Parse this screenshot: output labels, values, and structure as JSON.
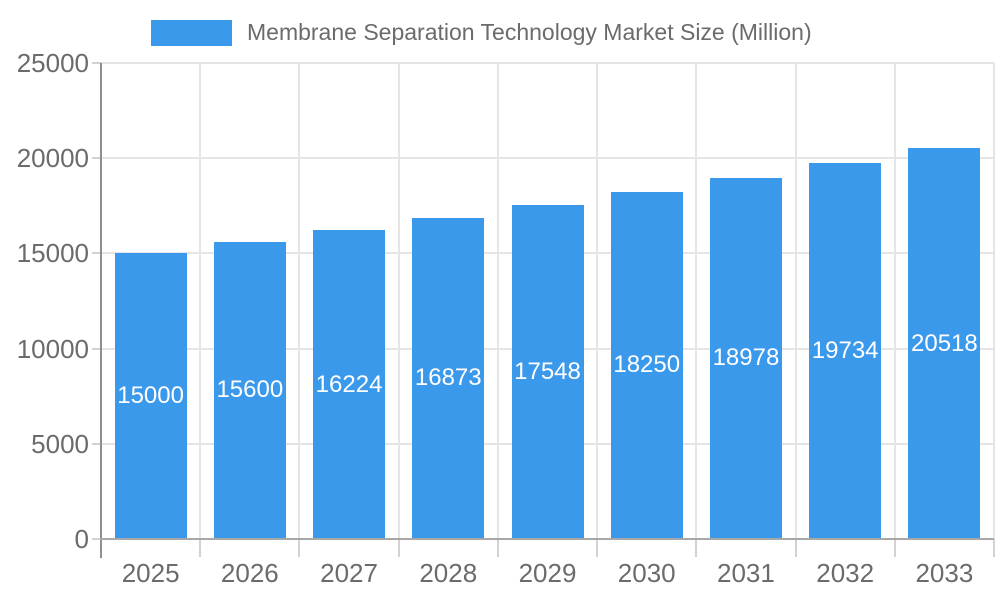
{
  "chart_data": {
    "type": "bar",
    "title": "Membrane Separation Technology Market Size (Million)",
    "categories": [
      "2025",
      "2026",
      "2027",
      "2028",
      "2029",
      "2030",
      "2031",
      "2032",
      "2033"
    ],
    "values": [
      15000,
      15600,
      16224,
      16873,
      17548,
      18250,
      18978,
      19734,
      20518
    ],
    "value_labels": [
      "15000",
      "15600",
      "16224",
      "16873",
      "17548",
      "18250",
      "18978",
      "19734",
      "20518"
    ],
    "yticks": [
      0,
      5000,
      10000,
      15000,
      20000,
      25000
    ],
    "ytick_labels": [
      "0",
      "5000",
      "10000",
      "15000",
      "20000",
      "25000"
    ],
    "ylim": [
      0,
      25000
    ],
    "xlabel": "",
    "ylabel": "",
    "grid": true,
    "legend_position": "top",
    "bar_label_position": "inside-center",
    "colors": {
      "bar": "#3B99EC",
      "bar_label": "#FFFFFF",
      "y_axis": "#8F8F8F",
      "x_axis": "#A8A8A8",
      "grid": "#E5E5E5",
      "tick_mark": "#D2D2D2",
      "text": "#6B6B6B",
      "background": "#FFFFFF"
    }
  }
}
